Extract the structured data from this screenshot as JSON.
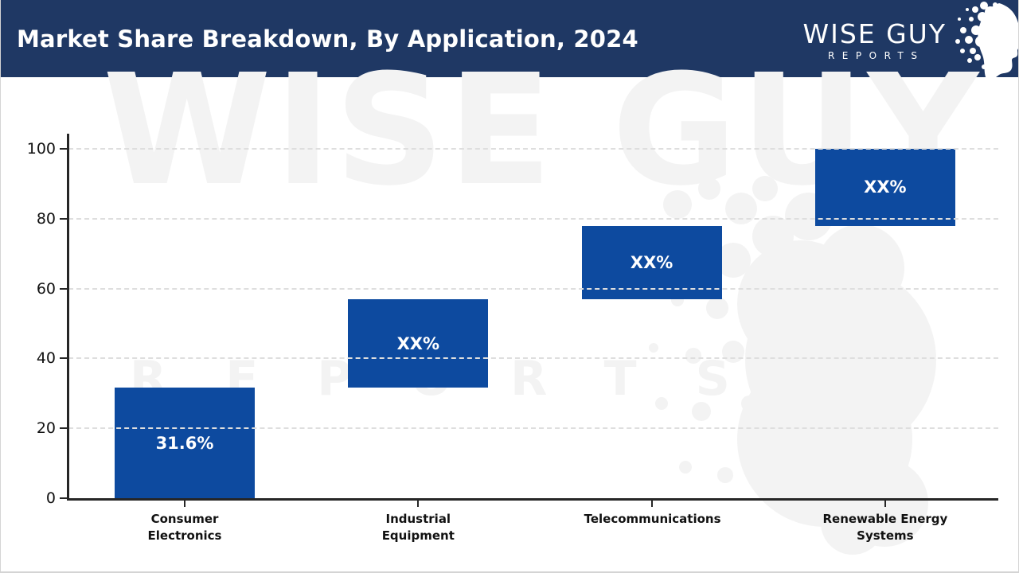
{
  "header": {
    "title": "Market Share Breakdown, By Application, 2024",
    "logo": {
      "name": "WISE GUY",
      "subtext": "REPORTS"
    },
    "bg_color": "#1f3864"
  },
  "watermark": {
    "name": "WISE GUY",
    "subtext": "REPORTS"
  },
  "chart_data": {
    "type": "bar",
    "variant": "waterfall",
    "title": "Market Share Breakdown, By Application, 2024",
    "unit": "%",
    "categories": [
      "Consumer Electronics",
      "Industrial Equipment",
      "Telecommunications",
      "Renewable Energy Systems"
    ],
    "segments": [
      {
        "category": "Consumer Electronics",
        "start": 0,
        "end": 31.6,
        "label": "31.6%"
      },
      {
        "category": "Industrial Equipment",
        "start": 31.6,
        "end": 57,
        "label": "XX%"
      },
      {
        "category": "Telecommunications",
        "start": 57,
        "end": 78,
        "label": "XX%"
      },
      {
        "category": "Renewable Energy Systems",
        "start": 78,
        "end": 100,
        "label": "XX%"
      }
    ],
    "xlabel": "",
    "ylabel": "",
    "yticks": [
      0,
      20,
      40,
      60,
      80,
      100
    ],
    "ylim": [
      0,
      104
    ],
    "grid": {
      "axis": "y",
      "style": "dashed",
      "drawn_above_bars": true
    },
    "legend": null,
    "bar_color": "#0d4a9f",
    "bar_label_color": "#ffffff",
    "axis_color": "#262626",
    "grid_color": "#dedede"
  }
}
